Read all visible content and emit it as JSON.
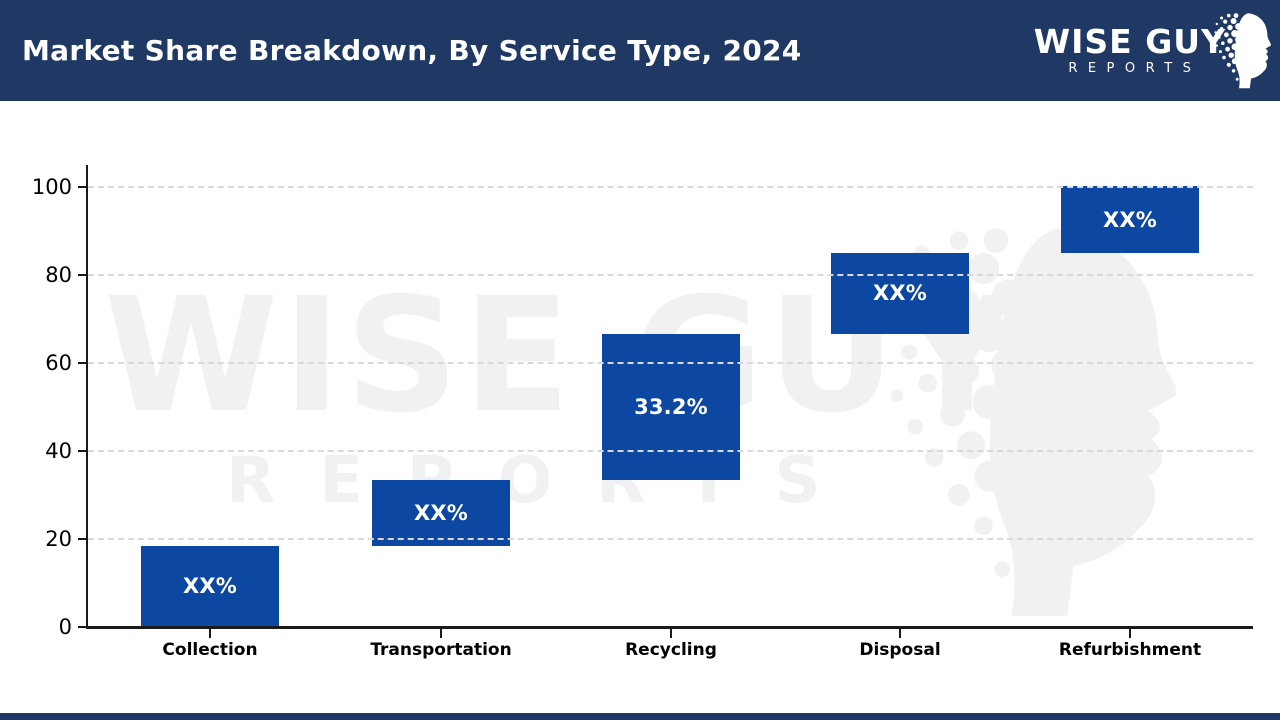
{
  "header": {
    "title": "Market Share Breakdown, By Service Type, 2024",
    "logo": {
      "wordmark": "WISE GUY",
      "subtext": "REPORTS"
    }
  },
  "watermark": {
    "wordmark": "WISE GUY",
    "subtext": "REPORTS"
  },
  "colors": {
    "header_bg": "#1f3864",
    "footer_bg": "#1f3864",
    "bar": "#0c47a1",
    "grid": "#d9d9d9",
    "axis": "#1a1a1a",
    "bar_label_text": "#ffffff",
    "watermark": "#f1f1f4",
    "title_text": "#ffffff"
  },
  "chart_data": {
    "type": "bar",
    "variant": "waterfall",
    "title": "Market Share Breakdown, By Service Type, 2024",
    "xlabel": "",
    "ylabel": "",
    "ylim": [
      0,
      105
    ],
    "yticks": [
      0,
      20,
      40,
      60,
      80,
      100
    ],
    "grid": "horizontal-dashed",
    "legend": "none",
    "categories": [
      "Collection",
      "Transportation",
      "Recycling",
      "Disposal",
      "Refurbishment"
    ],
    "bars": [
      {
        "category": "Collection",
        "start": 0,
        "end": 18.5,
        "value_label": "XX%"
      },
      {
        "category": "Transportation",
        "start": 18.5,
        "end": 33.4,
        "value_label": "XX%"
      },
      {
        "category": "Recycling",
        "start": 33.4,
        "end": 66.6,
        "value_label": "33.2%"
      },
      {
        "category": "Disposal",
        "start": 66.6,
        "end": 85.0,
        "value_label": "XX%"
      },
      {
        "category": "Refurbishment",
        "start": 85.0,
        "end": 100.2,
        "value_label": "XX%"
      }
    ]
  }
}
